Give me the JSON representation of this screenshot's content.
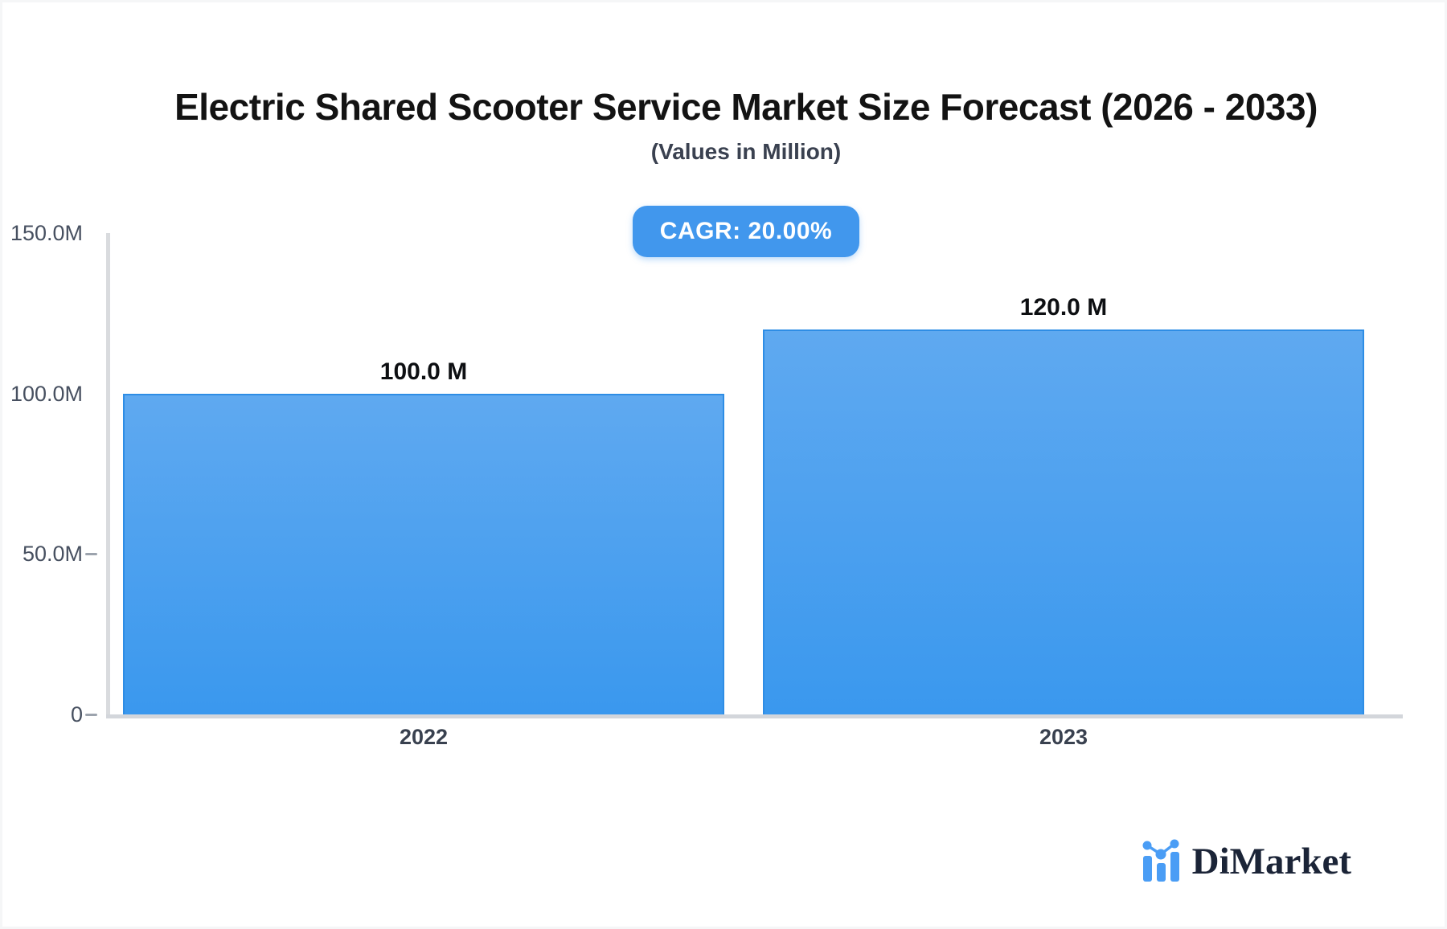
{
  "header": {
    "title": "Electric Shared Scooter Service Market Size Forecast (2026 - 2033)",
    "subtitle": "(Values in Million)"
  },
  "badge": {
    "label": "CAGR: 20.00%",
    "color": "#4197ed",
    "text_color": "#ffffff"
  },
  "chart_data": {
    "type": "bar",
    "title": "Electric Shared Scooter Service Market Size Forecast (2026 - 2033)",
    "subtitle": "(Values in Million)",
    "unit": "Million",
    "cagr_percent": "20.00%",
    "categories": [
      "2022",
      "2023"
    ],
    "values": [
      100.0,
      120.0
    ],
    "value_labels": [
      "100.0 M",
      "120.0 M"
    ],
    "ylim": [
      0,
      150
    ],
    "yticks": [
      {
        "value": 150,
        "label": "150.0M",
        "dash": false
      },
      {
        "value": 100,
        "label": "100.0M",
        "dash": false
      },
      {
        "value": 50,
        "label": "50.0M",
        "dash": true
      },
      {
        "value": 0,
        "label": "0",
        "dash": true
      }
    ],
    "grid": false,
    "legend": "none",
    "bar_color_top": "#5fa9f0",
    "bar_color_bottom": "#3a98ee",
    "bar_border_color": "#2e8de5"
  },
  "logo": {
    "text": "DiMarket",
    "icon": "bar-chart-logo-icon",
    "text_color": "#1b2437",
    "icon_color": "#4a9df5"
  }
}
